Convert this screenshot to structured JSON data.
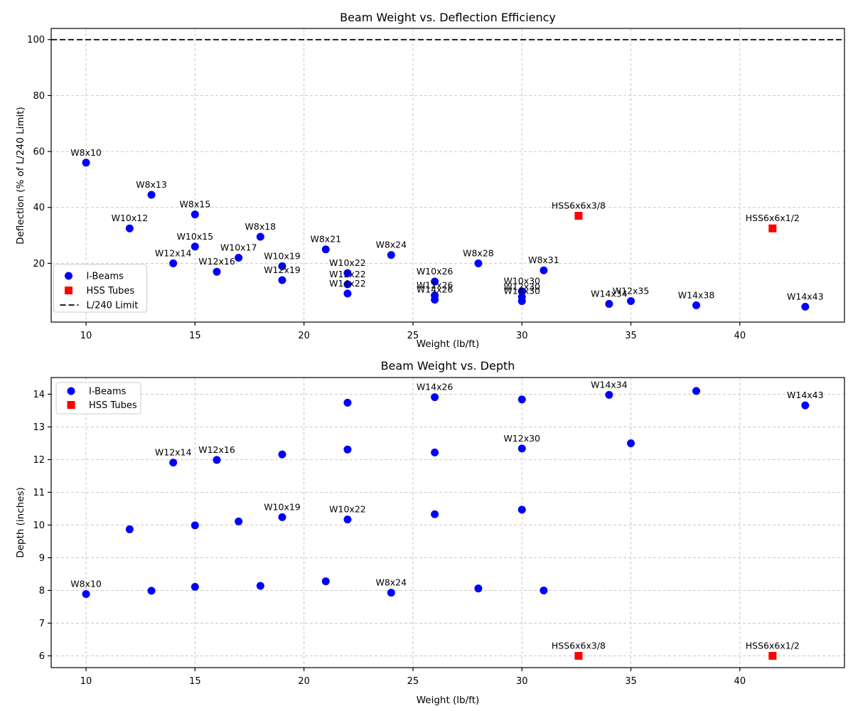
{
  "colors": {
    "ibeam": "#0000ff",
    "hss": "#ff0000",
    "limit_line": "#000000",
    "grid": "#c9c9c9",
    "background": "#ffffff",
    "text": "#000000"
  },
  "chart_data": [
    {
      "type": "scatter",
      "title": "Beam Weight vs. Deflection Efficiency",
      "xlabel": "Weight (lb/ft)",
      "ylabel": "Deflection (% of L/240 Limit)",
      "xlim": [
        8.4,
        44.8
      ],
      "ylim": [
        -1,
        104
      ],
      "xticks": [
        10,
        15,
        20,
        25,
        30,
        35,
        40
      ],
      "yticks": [
        20,
        40,
        60,
        80,
        100
      ],
      "grid": true,
      "point_labels": "all",
      "limit_line": {
        "y": 100,
        "style": "dashed",
        "color": "#000000",
        "label": "L/240 Limit"
      },
      "legend": {
        "position": "lower left",
        "entries": [
          {
            "label": "I-Beams",
            "marker": "circle",
            "color": "#0000ff"
          },
          {
            "label": "HSS Tubes",
            "marker": "square",
            "color": "#ff0000"
          },
          {
            "label": "L/240 Limit",
            "marker": "dash",
            "color": "#000000"
          }
        ]
      },
      "series": [
        {
          "name": "I-Beams",
          "marker": "circle",
          "color": "#0000ff",
          "points": [
            {
              "label": "W8x10",
              "x": 10,
              "y": 56
            },
            {
              "label": "W10x12",
              "x": 12,
              "y": 32.5
            },
            {
              "label": "W8x13",
              "x": 13,
              "y": 44.5
            },
            {
              "label": "W12x14",
              "x": 14,
              "y": 20
            },
            {
              "label": "W8x15",
              "x": 15,
              "y": 37.5
            },
            {
              "label": "W10x15",
              "x": 15,
              "y": 26
            },
            {
              "label": "W12x16",
              "x": 16,
              "y": 17
            },
            {
              "label": "W10x17",
              "x": 17,
              "y": 22
            },
            {
              "label": "W8x18",
              "x": 18,
              "y": 29.5
            },
            {
              "label": "W10x19",
              "x": 19,
              "y": 19
            },
            {
              "label": "W12x19",
              "x": 19,
              "y": 14
            },
            {
              "label": "W8x21",
              "x": 21,
              "y": 25
            },
            {
              "label": "W10x22",
              "x": 22,
              "y": 16.5
            },
            {
              "label": "W12x22",
              "x": 22,
              "y": 12.5
            },
            {
              "label": "W14x22",
              "x": 22,
              "y": 9.2
            },
            {
              "label": "W8x24",
              "x": 24,
              "y": 23
            },
            {
              "label": "W10x26",
              "x": 26,
              "y": 13.5
            },
            {
              "label": "W12x26",
              "x": 26,
              "y": 8.5
            },
            {
              "label": "W14x26",
              "x": 26,
              "y": 7
            },
            {
              "label": "W8x28",
              "x": 28,
              "y": 20
            },
            {
              "label": "W10x30",
              "x": 30,
              "y": 10
            },
            {
              "label": "W12x30",
              "x": 30,
              "y": 8
            },
            {
              "label": "W14x30",
              "x": 30,
              "y": 6.5
            },
            {
              "label": "W8x31",
              "x": 31,
              "y": 17.5
            },
            {
              "label": "W14x34",
              "x": 34,
              "y": 5.5
            },
            {
              "label": "W12x35",
              "x": 35,
              "y": 6.5
            },
            {
              "label": "W14x38",
              "x": 38,
              "y": 5
            },
            {
              "label": "W14x43",
              "x": 43,
              "y": 4.5
            }
          ]
        },
        {
          "name": "HSS Tubes",
          "marker": "square",
          "color": "#ff0000",
          "points": [
            {
              "label": "HSS6x6x3/8",
              "x": 32.6,
              "y": 37
            },
            {
              "label": "HSS6x6x1/2",
              "x": 41.5,
              "y": 32.5
            }
          ]
        }
      ]
    },
    {
      "type": "scatter",
      "title": "Beam Weight vs. Depth",
      "xlabel": "Weight (lb/ft)",
      "ylabel": "Depth (inches)",
      "xlim": [
        8.4,
        44.8
      ],
      "ylim": [
        5.64,
        14.51
      ],
      "xticks": [
        10,
        15,
        20,
        25,
        30,
        35,
        40
      ],
      "yticks": [
        6,
        7,
        8,
        9,
        10,
        11,
        12,
        13,
        14
      ],
      "grid": true,
      "point_labels": [
        "W8x10",
        "W12x14",
        "W12x16",
        "W10x19",
        "W10x22",
        "W8x24",
        "W14x26",
        "W12x30",
        "W14x34",
        "W14x43",
        "HSS6x6x3/8",
        "HSS6x6x1/2"
      ],
      "legend": {
        "position": "upper left",
        "entries": [
          {
            "label": "I-Beams",
            "marker": "circle",
            "color": "#0000ff"
          },
          {
            "label": "HSS Tubes",
            "marker": "square",
            "color": "#ff0000"
          }
        ]
      },
      "series": [
        {
          "name": "I-Beams",
          "marker": "circle",
          "color": "#0000ff",
          "points": [
            {
              "label": "W8x10",
              "x": 10,
              "y": 7.89
            },
            {
              "label": "W10x12",
              "x": 12,
              "y": 9.87
            },
            {
              "label": "W8x13",
              "x": 13,
              "y": 7.99
            },
            {
              "label": "W12x14",
              "x": 14,
              "y": 11.91
            },
            {
              "label": "W8x15",
              "x": 15,
              "y": 8.11
            },
            {
              "label": "W10x15",
              "x": 15,
              "y": 9.99
            },
            {
              "label": "W12x16",
              "x": 16,
              "y": 11.99
            },
            {
              "label": "W10x17",
              "x": 17,
              "y": 10.11
            },
            {
              "label": "W8x18",
              "x": 18,
              "y": 8.14
            },
            {
              "label": "W10x19",
              "x": 19,
              "y": 10.24
            },
            {
              "label": "W12x19",
              "x": 19,
              "y": 12.16
            },
            {
              "label": "W8x21",
              "x": 21,
              "y": 8.28
            },
            {
              "label": "W10x22",
              "x": 22,
              "y": 10.17
            },
            {
              "label": "W12x22",
              "x": 22,
              "y": 12.31
            },
            {
              "label": "W14x22",
              "x": 22,
              "y": 13.74
            },
            {
              "label": "W8x24",
              "x": 24,
              "y": 7.93
            },
            {
              "label": "W10x26",
              "x": 26,
              "y": 10.33
            },
            {
              "label": "W12x26",
              "x": 26,
              "y": 12.22
            },
            {
              "label": "W14x26",
              "x": 26,
              "y": 13.91
            },
            {
              "label": "W8x28",
              "x": 28,
              "y": 8.06
            },
            {
              "label": "W10x30",
              "x": 30,
              "y": 10.47
            },
            {
              "label": "W12x30",
              "x": 30,
              "y": 12.34
            },
            {
              "label": "W14x30",
              "x": 30,
              "y": 13.84
            },
            {
              "label": "W8x31",
              "x": 31,
              "y": 8.0
            },
            {
              "label": "W14x34",
              "x": 34,
              "y": 13.98
            },
            {
              "label": "W12x35",
              "x": 35,
              "y": 12.5
            },
            {
              "label": "W14x38",
              "x": 38,
              "y": 14.1
            },
            {
              "label": "W14x43",
              "x": 43,
              "y": 13.66
            }
          ]
        },
        {
          "name": "HSS Tubes",
          "marker": "square",
          "color": "#ff0000",
          "points": [
            {
              "label": "HSS6x6x3/8",
              "x": 32.6,
              "y": 6.0
            },
            {
              "label": "HSS6x6x1/2",
              "x": 41.5,
              "y": 6.0
            }
          ]
        }
      ]
    }
  ]
}
